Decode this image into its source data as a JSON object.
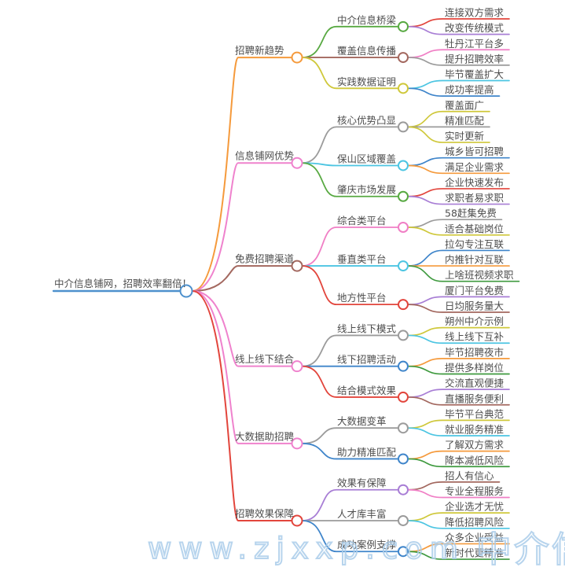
{
  "watermark": {
    "url": "www.zjxxp.com",
    "site": "中介信息铺网",
    "color": "#abcdea"
  },
  "diagram": {
    "text_color": "#4d4d4d",
    "central": {
      "label": "中介信息铺网，招聘效率翻倍！",
      "color": "#4e91cd"
    },
    "branches": [
      {
        "label": "招聘新趋势",
        "color": "#f59a3c",
        "children": [
          {
            "label": "中介信息桥梁",
            "color": "#58a942",
            "leaves": [
              {
                "label": "连接双方需求",
                "color": "#e2453c"
              },
              {
                "label": "改变传统模式",
                "color": "#a87ed5"
              }
            ]
          },
          {
            "label": "覆盖信息传播",
            "color": "#a3685f",
            "leaves": [
              {
                "label": "牡丹江平台多",
                "color": "#f07fc5"
              },
              {
                "label": "提升招聘效率",
                "color": "#9b9b9b"
              }
            ]
          },
          {
            "label": "实践数据证明",
            "color": "#cfc83b",
            "leaves": [
              {
                "label": "毕节覆盖扩大",
                "color": "#4cc5e2"
              },
              {
                "label": "成功率提高",
                "color": "#3f85ca"
              }
            ]
          }
        ]
      },
      {
        "label": "信息铺网优势",
        "color": "#ef82cd",
        "children": [
          {
            "label": "核心优势凸显",
            "color": "#9b9b9b",
            "leaves": [
              {
                "label": "覆盖面广",
                "color": "#cfc83b"
              },
              {
                "label": "精准匹配",
                "color": "#9b9b9b"
              },
              {
                "label": "实时更新",
                "color": "#cfc83b"
              }
            ]
          },
          {
            "label": "保山区域覆盖",
            "color": "#4cc5e2",
            "leaves": [
              {
                "label": "城乡皆可招聘",
                "color": "#3f85ca"
              },
              {
                "label": "满足企业需求",
                "color": "#f59a3c"
              }
            ]
          },
          {
            "label": "肇庆市场发展",
            "color": "#58a942",
            "leaves": [
              {
                "label": "企业快速发布",
                "color": "#e2453c"
              },
              {
                "label": "求职者易求职",
                "color": "#a87ed5"
              }
            ]
          }
        ]
      },
      {
        "label": "免费招聘渠道",
        "color": "#a3685f",
        "children": [
          {
            "label": "综合类平台",
            "color": "#f07fc5",
            "leaves": [
              {
                "label": "58赶集免费",
                "color": "#9b9b9b"
              },
              {
                "label": "适合基础岗位",
                "color": "#cfc83b"
              }
            ]
          },
          {
            "label": "垂直类平台",
            "color": "#4cc5e2",
            "leaves": [
              {
                "label": "拉勾专注互联",
                "color": "#3f85ca"
              },
              {
                "label": "内推针对互联",
                "color": "#f59a3c"
              },
              {
                "label": "上啥班视频求职",
                "color": "#3f9a3f"
              }
            ]
          },
          {
            "label": "地方性平台",
            "color": "#e2453c",
            "leaves": [
              {
                "label": "厦门平台免费",
                "color": "#a87ed5"
              },
              {
                "label": "日均服务量大",
                "color": "#a3685f"
              }
            ]
          }
        ]
      },
      {
        "label": "线上线下结合",
        "color": "#ef82cd",
        "children": [
          {
            "label": "线上线下模式",
            "color": "#9b9b9b",
            "leaves": [
              {
                "label": "朔州中介示例",
                "color": "#cfc83b"
              },
              {
                "label": "线上线下互补",
                "color": "#4cc5e2"
              }
            ]
          },
          {
            "label": "线下招聘活动",
            "color": "#3f85ca",
            "leaves": [
              {
                "label": "毕节招聘夜市",
                "color": "#f59a3c"
              },
              {
                "label": "提供多样岗位",
                "color": "#3f9a3f"
              }
            ]
          },
          {
            "label": "结合模式效果",
            "color": "#e2453c",
            "leaves": [
              {
                "label": "交流直观便捷",
                "color": "#a87ed5"
              },
              {
                "label": "直播服务便利",
                "color": "#a3685f"
              }
            ]
          }
        ]
      },
      {
        "label": "大数据助招聘",
        "color": "#ef82cd",
        "children": [
          {
            "label": "大数据变革",
            "color": "#9b9b9b",
            "leaves": [
              {
                "label": "毕节平台典范",
                "color": "#cfc83b"
              },
              {
                "label": "就业服务精准",
                "color": "#4cc5e2"
              }
            ]
          },
          {
            "label": "助力精准匹配",
            "color": "#3f85ca",
            "leaves": [
              {
                "label": "了解双方需求",
                "color": "#f59a3c"
              },
              {
                "label": "降本减低风险",
                "color": "#3f9a3f"
              }
            ]
          }
        ]
      },
      {
        "label": "招聘效果保障",
        "color": "#e2453c",
        "children": [
          {
            "label": "效果有保障",
            "color": "#a87ed5",
            "leaves": [
              {
                "label": "招人有信心",
                "color": "#a3685f"
              },
              {
                "label": "专业全程服务",
                "color": "#f07fc5"
              }
            ]
          },
          {
            "label": "人才库丰富",
            "color": "#9b9b9b",
            "leaves": [
              {
                "label": "企业选才无忧",
                "color": "#cfc83b"
              },
              {
                "label": "降低招聘风险",
                "color": "#4cc5e2"
              }
            ]
          },
          {
            "label": "成功案例支撑",
            "color": "#3f85ca",
            "leaves": [
              {
                "label": "众多企业受益",
                "color": "#f59a3c"
              },
              {
                "label": "新时代更精准",
                "color": "#3f9a3f"
              }
            ]
          }
        ]
      }
    ]
  }
}
